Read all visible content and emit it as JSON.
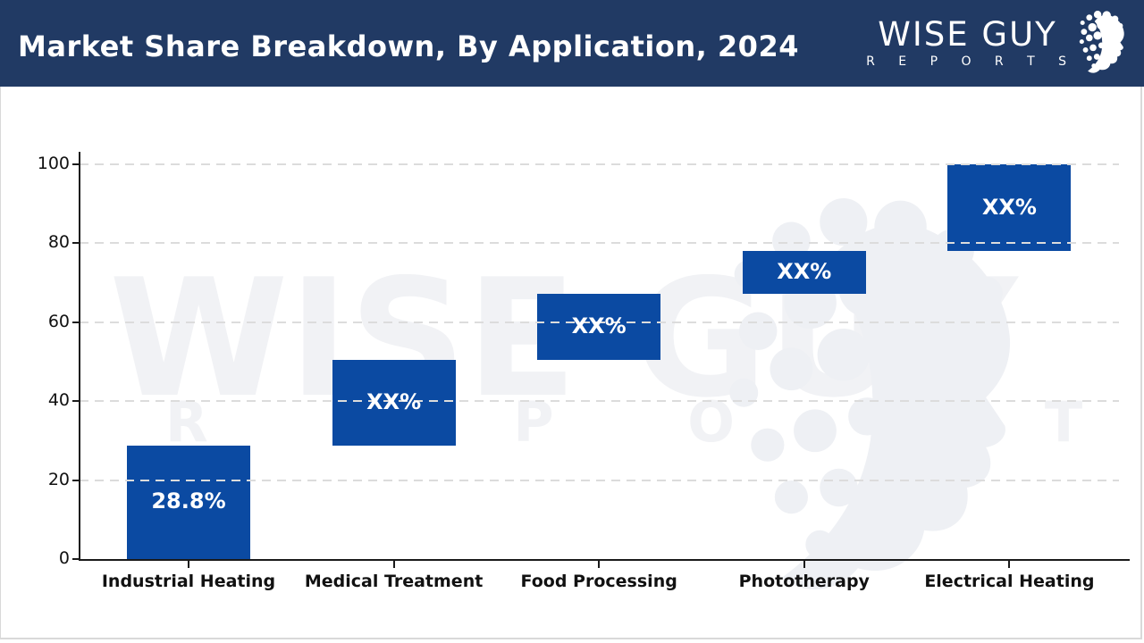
{
  "header": {
    "title": "Market Share Breakdown, By Application, 2024",
    "logo": {
      "line1": "WISE GUY",
      "line2": "R E P O R T S"
    }
  },
  "watermark": {
    "line1": "WISE GUY",
    "line2": "R E P O R T S"
  },
  "colors": {
    "header_background": "#213a64",
    "bar_blue": "#0b4aa2",
    "grid_gray": "#dcdcdc",
    "axis_black": "#1a1a1a",
    "watermark_gray": "#f1f2f5"
  },
  "chart_data": {
    "type": "bar",
    "subtype": "floating-waterfall",
    "title": "Market Share Breakdown, By Application, 2024",
    "categories": [
      "Industrial Heating",
      "Medical Treatment",
      "Food Processing",
      "Phototherapy",
      "Electrical Heating"
    ],
    "segments": [
      {
        "category": "Industrial Heating",
        "start": 0,
        "end": 28.8,
        "label": "28.8%"
      },
      {
        "category": "Medical Treatment",
        "start": 28.8,
        "end": 50.4,
        "label": "XX%"
      },
      {
        "category": "Food Processing",
        "start": 50.4,
        "end": 67.3,
        "label": "XX%"
      },
      {
        "category": "Phototherapy",
        "start": 67.3,
        "end": 78.0,
        "label": "XX%"
      },
      {
        "category": "Electrical Heating",
        "start": 78.0,
        "end": 100,
        "label": "XX%"
      }
    ],
    "xlabel": "",
    "ylabel": "",
    "ylim": [
      0,
      100
    ],
    "yticks": [
      0,
      20,
      40,
      60,
      80,
      100
    ],
    "grid": "dashed-horizontal",
    "legend": "none",
    "bar_color": "#0b4aa2",
    "bar_label_color": "#ffffff"
  }
}
